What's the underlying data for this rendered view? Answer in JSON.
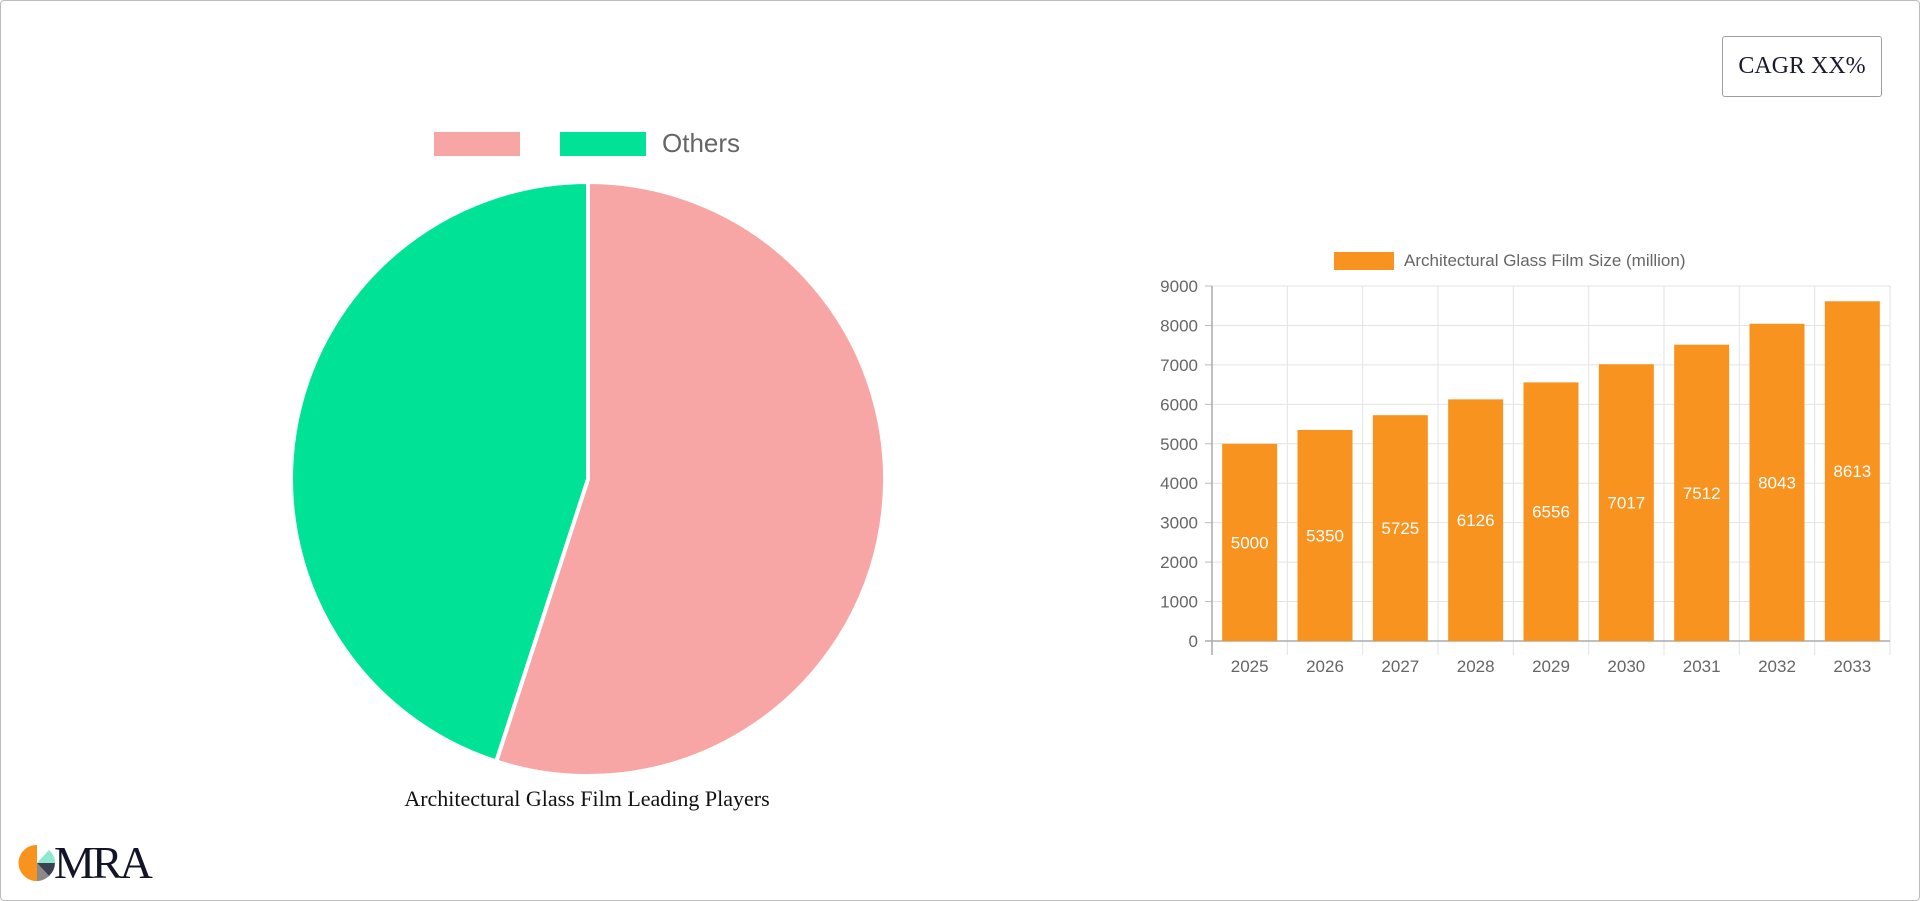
{
  "cagr_badge": {
    "label": "CAGR XX%"
  },
  "colors": {
    "pie_primary": "#f8a5a5",
    "pie_others": "#00e396",
    "bar": "#f7931e",
    "axis_text": "#666666",
    "grid": "#e0e0e0"
  },
  "pie": {
    "legend": [
      {
        "label": "",
        "color": "#f8a5a5"
      },
      {
        "label": "Others",
        "color": "#00e396"
      }
    ],
    "caption": "Architectural Glass Film Leading Players"
  },
  "bar": {
    "legend_label": "Architectural Glass Film Size (million)"
  },
  "logo": {
    "text": "MRA"
  },
  "chart_data": [
    {
      "type": "pie",
      "title": "Architectural Glass Film Leading Players",
      "labels": [
        "",
        "Others"
      ],
      "values": [
        55,
        45
      ],
      "colors": [
        "#f8a5a5",
        "#00e396"
      ],
      "legend_position": "top"
    },
    {
      "type": "bar",
      "title": "",
      "categories": [
        "2025",
        "2026",
        "2027",
        "2028",
        "2029",
        "2030",
        "2031",
        "2032",
        "2033"
      ],
      "series": [
        {
          "name": "Architectural Glass Film Size (million)",
          "values": [
            5000,
            5350,
            5725,
            6126,
            6556,
            7017,
            7512,
            8043,
            8613
          ],
          "color": "#f7931e"
        }
      ],
      "xlabel": "",
      "ylabel": "",
      "ylim": [
        0,
        9000
      ],
      "yticks": [
        0,
        1000,
        2000,
        3000,
        4000,
        5000,
        6000,
        7000,
        8000,
        9000
      ],
      "grid": true,
      "data_labels": true,
      "legend_position": "top"
    }
  ]
}
